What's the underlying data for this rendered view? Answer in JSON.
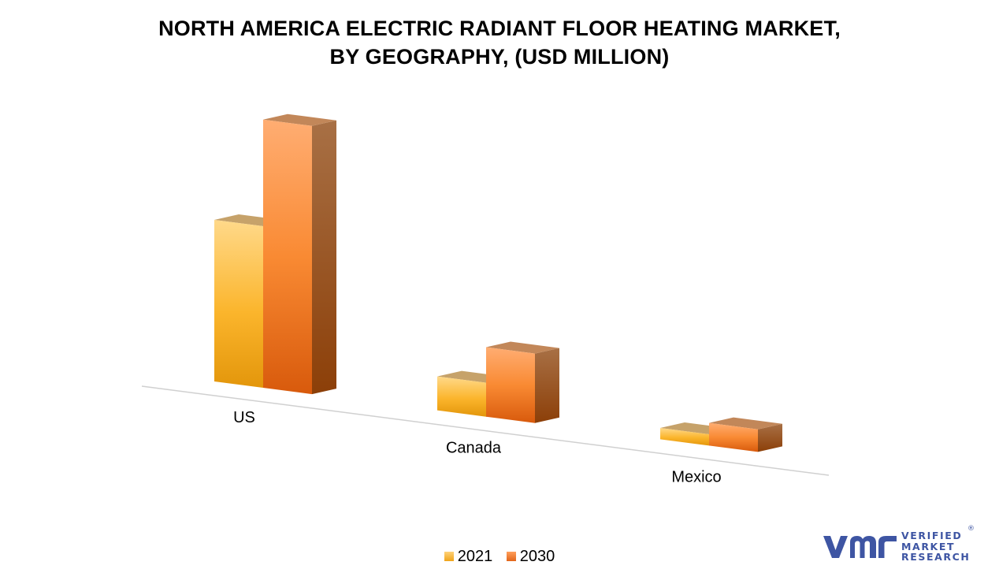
{
  "chart_data": {
    "type": "bar",
    "title_lines": [
      "NORTH AMERICA ELECTRIC RADIANT FLOOR HEATING MARKET,",
      "BY GEOGRAPHY,  (USD MILLION)"
    ],
    "categories": [
      "US",
      "Canada",
      "Mexico"
    ],
    "series": [
      {
        "name": "2021",
        "values": [
          100,
          21,
          7
        ],
        "color": "#f7b733"
      },
      {
        "name": "2030",
        "values": [
          166,
          43,
          14
        ],
        "color": "#f47a26"
      }
    ],
    "legend_position": "bottom",
    "grid": false,
    "style": "3d-bar"
  },
  "logo": {
    "lines": [
      "VERIFIED",
      "MARKET",
      "RESEARCH"
    ],
    "mark": "®",
    "color": "#3e55a3"
  }
}
